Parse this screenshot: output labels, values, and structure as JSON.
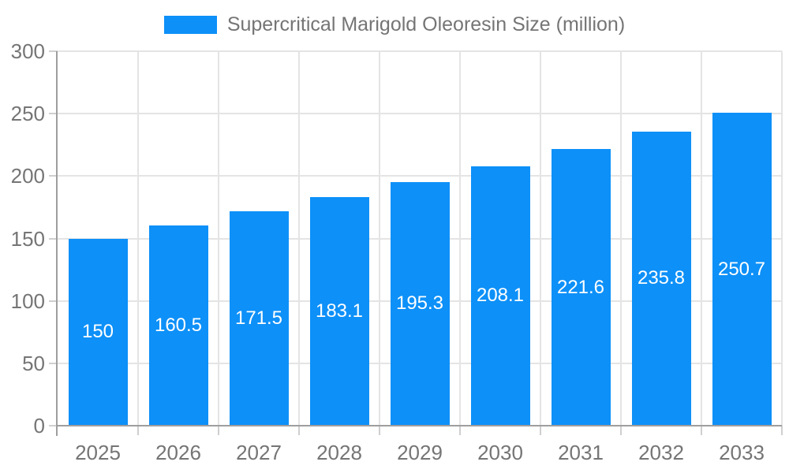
{
  "legend": {
    "label": "Supercritical Marigold Oleoresin Size (million)"
  },
  "style": {
    "bar_color": "#0D90F8",
    "axis_color": "#9E9E9E",
    "grid_color": "#E4E4E4",
    "tick_color": "#CFCFCF",
    "label_color": "#757575",
    "bar_label_color": "#FFFFFF",
    "background": "#FFFFFF"
  },
  "chart_data": {
    "type": "bar",
    "title": "Supercritical Marigold Oleoresin Size (million)",
    "categories": [
      "2025",
      "2026",
      "2027",
      "2028",
      "2029",
      "2030",
      "2031",
      "2032",
      "2033"
    ],
    "series": [
      {
        "name": "Supercritical Marigold Oleoresin Size (million)",
        "values": [
          150,
          160.5,
          171.5,
          183.1,
          195.3,
          208.1,
          221.6,
          235.8,
          250.7
        ]
      }
    ],
    "value_labels": [
      "150",
      "160.5",
      "171.5",
      "183.1",
      "195.3",
      "208.1",
      "221.6",
      "235.8",
      "250.7"
    ],
    "value_label_position": "inside-center",
    "xlabel": "",
    "ylabel": "",
    "ylim": [
      0,
      300
    ],
    "ytick_interval": 50,
    "yticks": [
      0,
      50,
      100,
      150,
      200,
      250,
      300
    ],
    "grid": true,
    "legend_position": "top"
  }
}
